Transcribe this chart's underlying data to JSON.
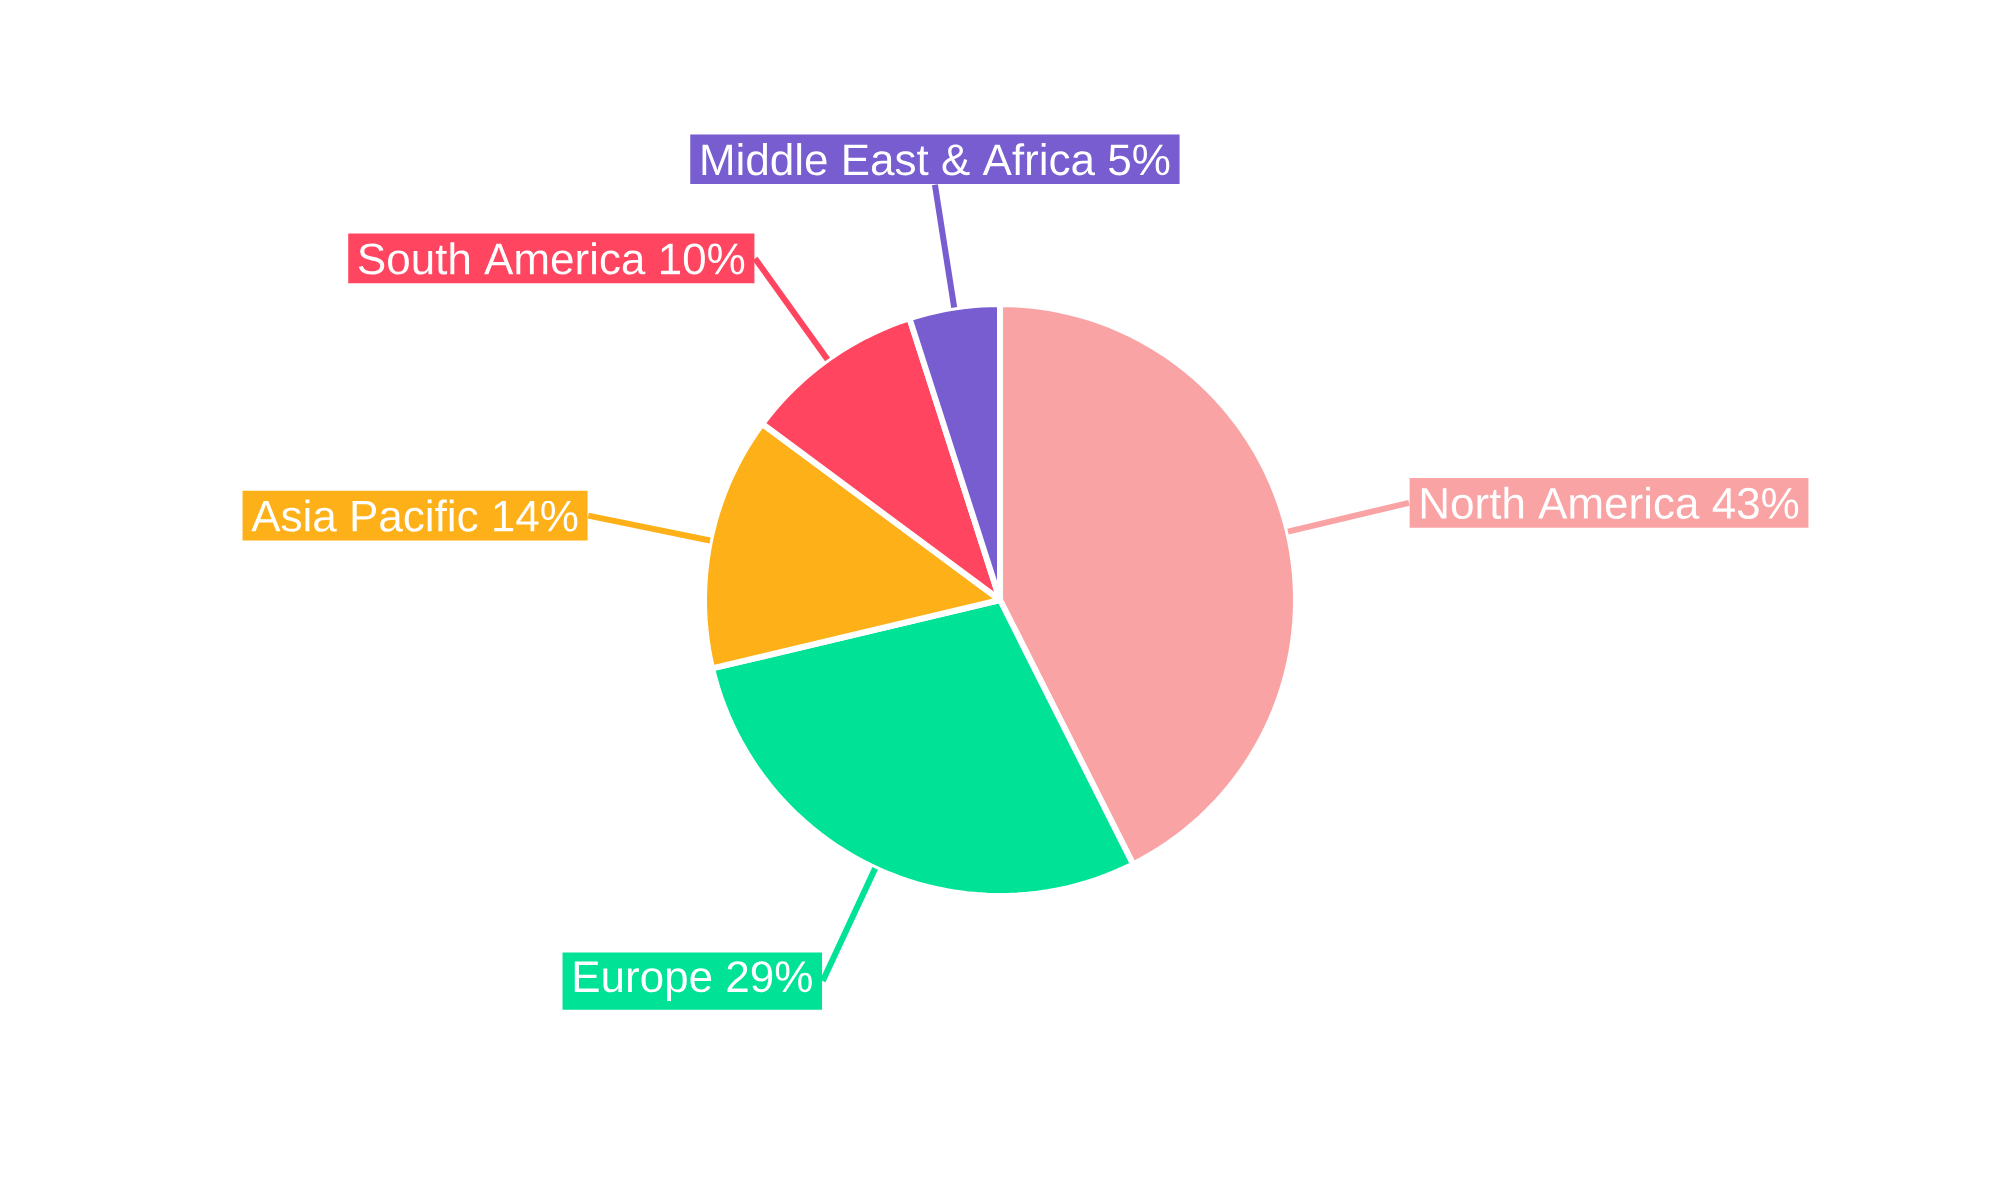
{
  "chart_data": {
    "type": "pie",
    "categories": [
      "North America",
      "Europe",
      "Asia Pacific",
      "South America",
      "Middle East & Africa"
    ],
    "values": [
      43,
      29,
      14,
      10,
      5
    ],
    "value_labels": [
      "43%",
      "29%",
      "14%",
      "10%",
      "5%"
    ],
    "colors": [
      "#f9a3a4",
      "#00e396",
      "#feb019",
      "#ff4560",
      "#775dd0"
    ]
  }
}
